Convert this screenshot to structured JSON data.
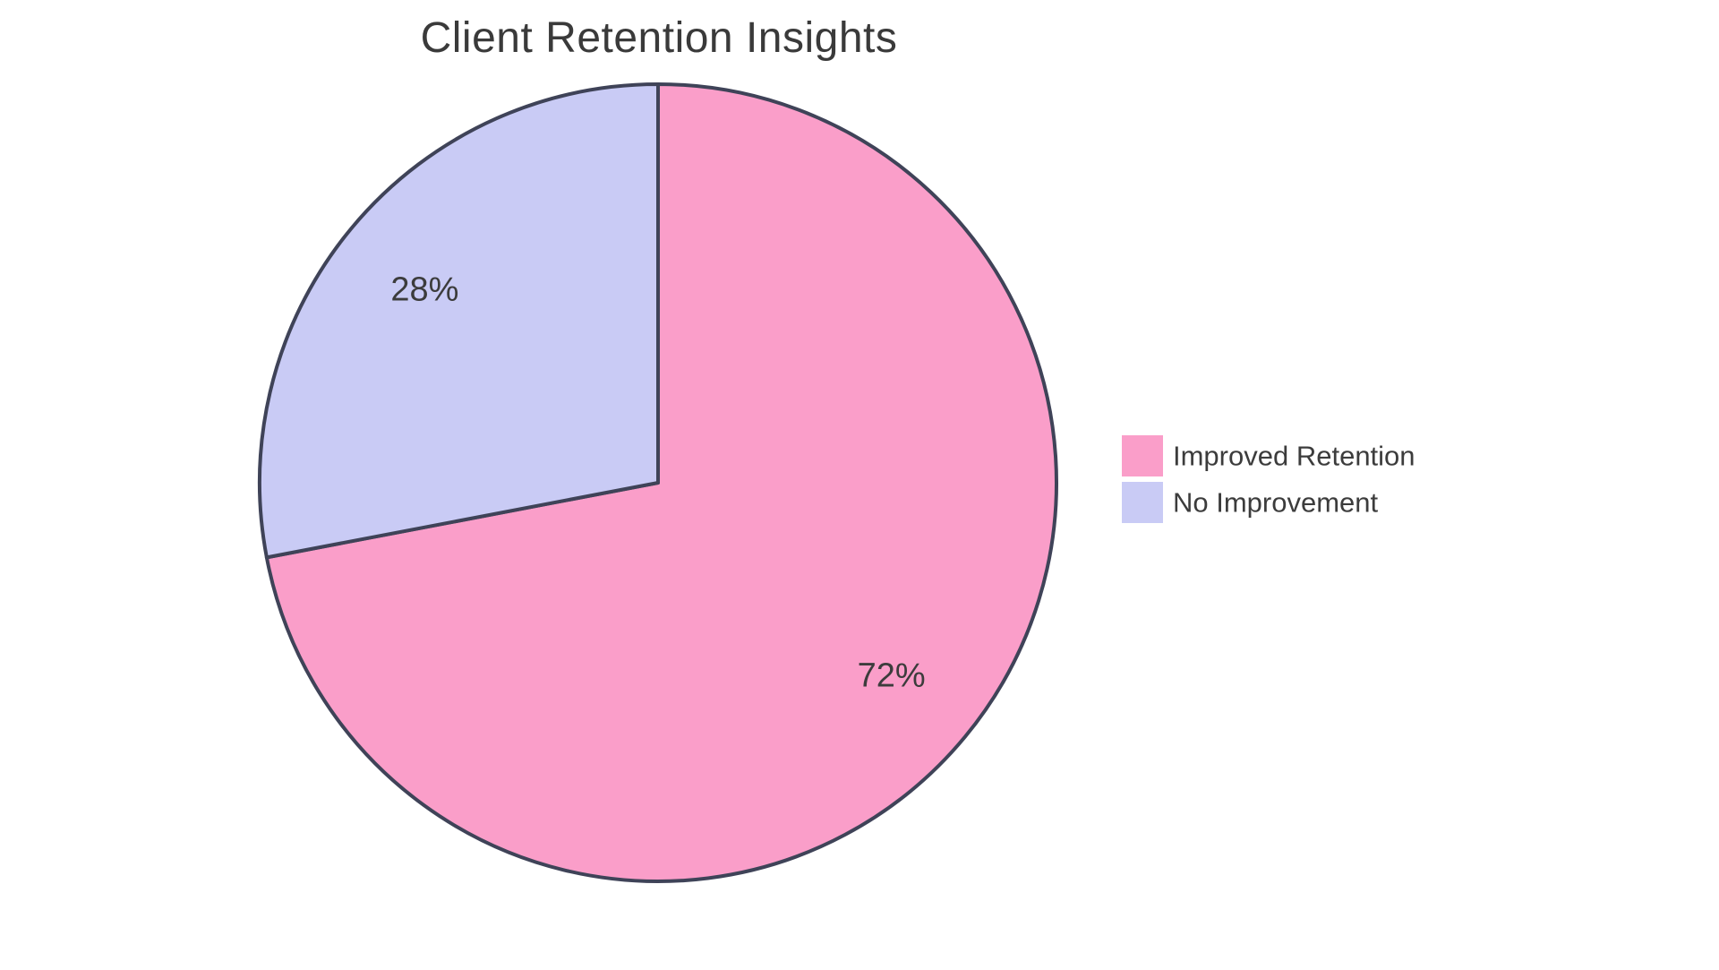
{
  "chart_data": {
    "type": "pie",
    "title": "Client Retention Insights",
    "slices": [
      {
        "label": "Improved Retention",
        "value": 72,
        "display": "72%",
        "color": "#FA9EC9"
      },
      {
        "label": "No Improvement",
        "value": 28,
        "display": "28%",
        "color": "#C9CBF5"
      }
    ],
    "start_angle_deg": 90,
    "direction": "clockwise",
    "background": "#FFFFFF",
    "outline_color": "#3F4358",
    "outline_width": 4,
    "title_color": "#3A3A3A",
    "percent_label_color": "#3C3C3C",
    "legend": {
      "position": "right",
      "text_color": "#3C3C3C",
      "entries": [
        {
          "label": "Improved Retention",
          "color": "#FA9EC9"
        },
        {
          "label": "No Improvement",
          "color": "#C9CBF5"
        }
      ]
    }
  }
}
